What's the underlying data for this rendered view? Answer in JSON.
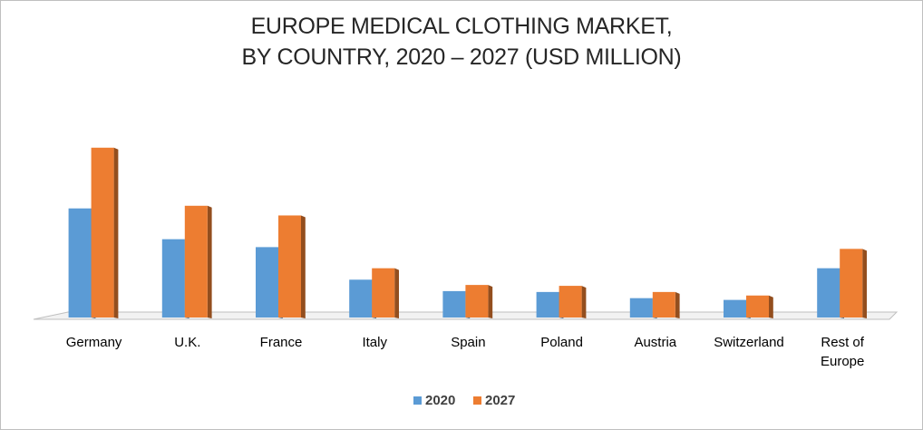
{
  "chart_data": {
    "type": "bar",
    "title_lines": [
      "EUROPE MEDICAL CLOTHING MARKET,",
      "BY COUNTRY, 2020 – 2027 (USD MILLION)"
    ],
    "categories": [
      [
        "Germany"
      ],
      [
        "U.K."
      ],
      [
        "France"
      ],
      [
        "Italy"
      ],
      [
        "Spain"
      ],
      [
        "Poland"
      ],
      [
        "Austria"
      ],
      [
        "Switzerland"
      ],
      [
        "Rest of",
        "Europe"
      ]
    ],
    "series": [
      {
        "name": "2020",
        "color": "#5b9bd5",
        "values": [
          124,
          89,
          80,
          43,
          30,
          29,
          22,
          20,
          56
        ]
      },
      {
        "name": "2027",
        "color": "#ed7d31",
        "values": [
          193,
          127,
          116,
          56,
          37,
          36,
          29,
          25,
          78
        ]
      }
    ],
    "ylim": [
      0,
      200
    ],
    "grid": false,
    "legend_position": "bottom"
  }
}
